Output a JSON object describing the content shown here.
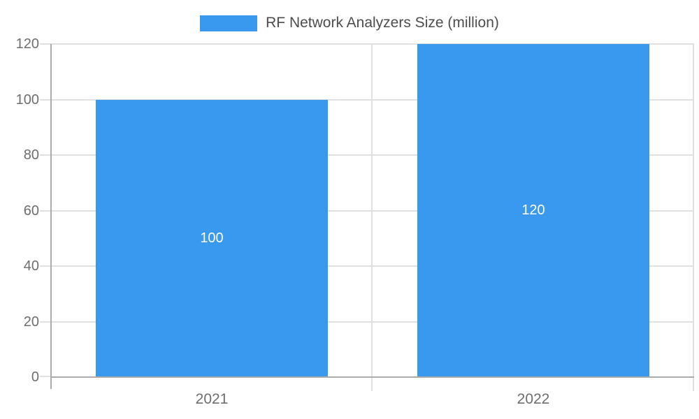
{
  "chart_data": {
    "type": "bar",
    "title": "",
    "legend": {
      "label": "RF Network Analyzers Size (million)",
      "position": "top-center"
    },
    "categories": [
      "2021",
      "2022"
    ],
    "series": [
      {
        "name": "RF Network Analyzers Size (million)",
        "values": [
          100,
          120
        ],
        "value_labels": [
          "100",
          "120"
        ]
      }
    ],
    "xlabel": "",
    "ylabel": "",
    "ylim": [
      0,
      120
    ],
    "yticks": [
      0,
      20,
      40,
      60,
      80,
      100,
      120
    ],
    "grid": true,
    "colors": {
      "bar": "#3999ee",
      "gridline": "#e0e0e0",
      "axis": "#ababab",
      "tick_label": "#6e6e6e",
      "legend_text": "#4d4d4d",
      "value_label": "#ffffff",
      "background": "#ffffff"
    }
  }
}
